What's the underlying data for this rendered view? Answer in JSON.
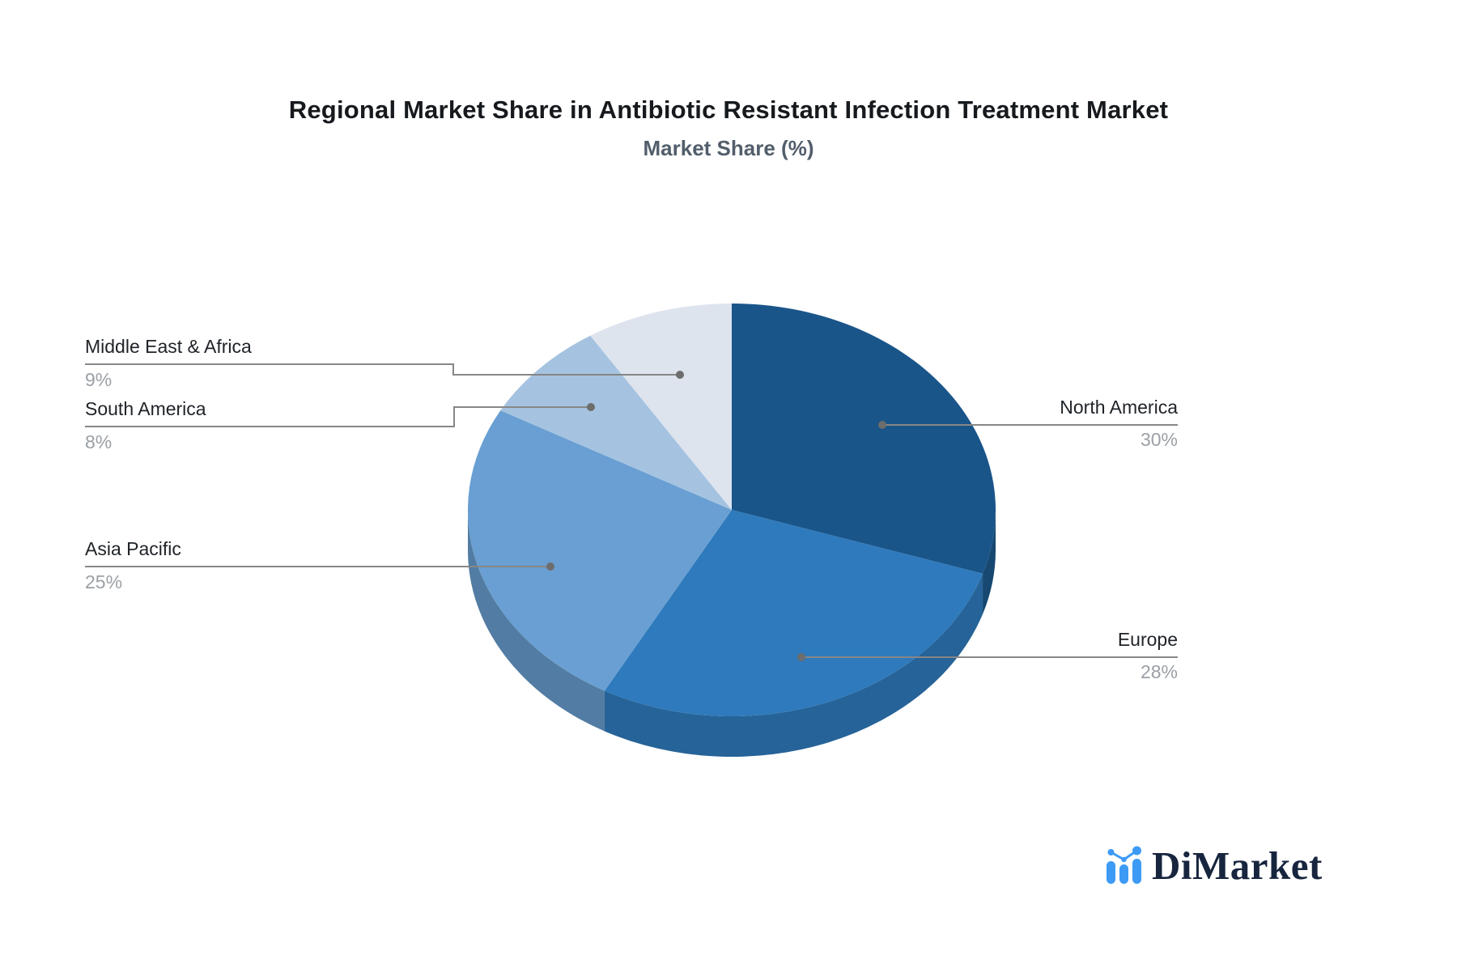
{
  "title": "Regional Market Share in Antibiotic Resistant Infection Treatment Market",
  "subtitle": "Market Share (%)",
  "logo": {
    "brand": "DiMarket",
    "icon": "bar-chart-trend-icon",
    "icon_color": "#3d9bf5",
    "text_color": "#17253e"
  },
  "chart_data": {
    "type": "pie",
    "style": "3d",
    "title": "Regional Market Share in Antibiotic Resistant Infection Treatment Market",
    "subtitle": "Market Share (%)",
    "unit": "%",
    "start_angle_deg": 0,
    "direction": "clockwise",
    "legend_position": "leader-labels",
    "segments": [
      {
        "label": "North America",
        "value": 30,
        "display": "30%",
        "color": "#1a558a",
        "side_color": "#164871"
      },
      {
        "label": "Europe",
        "value": 28,
        "display": "28%",
        "color": "#2e7abc",
        "side_color": "#266398"
      },
      {
        "label": "Asia Pacific",
        "value": 25,
        "display": "25%",
        "color": "#699fd2",
        "side_color": "#527ca3"
      },
      {
        "label": "South America",
        "value": 8,
        "display": "8%",
        "color": "#a5c3e0",
        "side_color": "#8099b1"
      },
      {
        "label": "Middle East & Africa",
        "value": 9,
        "display": "9%",
        "color": "#dde4ee",
        "side_color": "#aeb8c7"
      }
    ],
    "leader_line_color": "#878787",
    "leader_dot_color": "#6d6d6d"
  }
}
